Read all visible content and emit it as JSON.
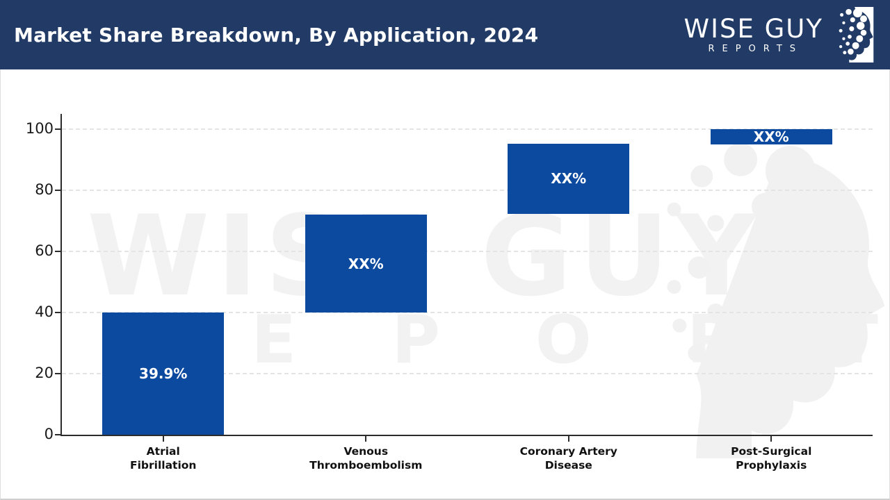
{
  "header": {
    "title": "Market Share Breakdown, By Application, 2024",
    "bg_color": "#213a66",
    "logo": {
      "line1": "WISE GUY",
      "line2": "REPORTS"
    }
  },
  "watermark": {
    "line1": "WISE GUY",
    "line2": "R E P O R T S"
  },
  "chart_data": {
    "type": "bar",
    "subtype": "floating-segment waterfall of market share",
    "title": "Market Share Breakdown, By Application, 2024",
    "categories": [
      "Atrial Fibrillation",
      "Venous Thromboembolism",
      "Coronary Artery Disease",
      "Post-Surgical Prophylaxis"
    ],
    "category_lines": [
      [
        "Atrial",
        "Fibrillation"
      ],
      [
        "Venous",
        "Thromboembolism"
      ],
      [
        "Coronary Artery",
        "Disease"
      ],
      [
        "Post-Surgical",
        "Prophylaxis"
      ]
    ],
    "bars": [
      {
        "category": "Atrial Fibrillation",
        "start": 0,
        "end": 39.9,
        "label": "39.9%"
      },
      {
        "category": "Venous Thromboembolism",
        "start": 40,
        "end": 72,
        "label": "XX%"
      },
      {
        "category": "Coronary Artery Disease",
        "start": 72.3,
        "end": 95.2,
        "label": "XX%"
      },
      {
        "category": "Post-Surgical Prophylaxis",
        "start": 95,
        "end": 100,
        "label": "XX%"
      }
    ],
    "xlabel": "",
    "ylabel": "",
    "ylim": [
      0,
      105
    ],
    "yticks": [
      0,
      20,
      40,
      60,
      80,
      100
    ],
    "bar_color": "#0b4a9f",
    "grid": true,
    "grid_style": "dashed horizontal",
    "legend": false
  }
}
